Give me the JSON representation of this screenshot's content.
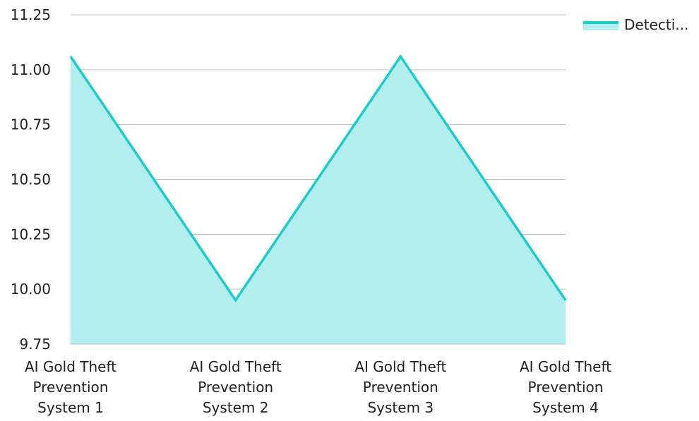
{
  "chart_data": {
    "type": "area",
    "categories": [
      "AI Gold Theft Prevention System 1",
      "AI Gold Theft Prevention System 2",
      "AI Gold Theft Prevention System 3",
      "AI Gold Theft Prevention System 4"
    ],
    "category_label_lines": [
      [
        "AI Gold Theft",
        "Prevention",
        "System 1"
      ],
      [
        "AI Gold Theft",
        "Prevention",
        "System 2"
      ],
      [
        "AI Gold Theft",
        "Prevention",
        "System 3"
      ],
      [
        "AI Gold Theft",
        "Prevention",
        "System 4"
      ]
    ],
    "series": [
      {
        "name": "Detecti...",
        "values": [
          11.06,
          9.95,
          11.06,
          9.95
        ]
      }
    ],
    "y_ticks": [
      "11.25",
      "11.00",
      "10.75",
      "10.50",
      "10.25",
      "10.00",
      "9.75"
    ],
    "ylim": [
      9.75,
      11.25
    ],
    "grid": "horizontal",
    "legend_position": "top-right",
    "colors": {
      "line": "#1ccbcb",
      "fill": "#b3eeee",
      "grid": "#bdbdbd"
    }
  }
}
